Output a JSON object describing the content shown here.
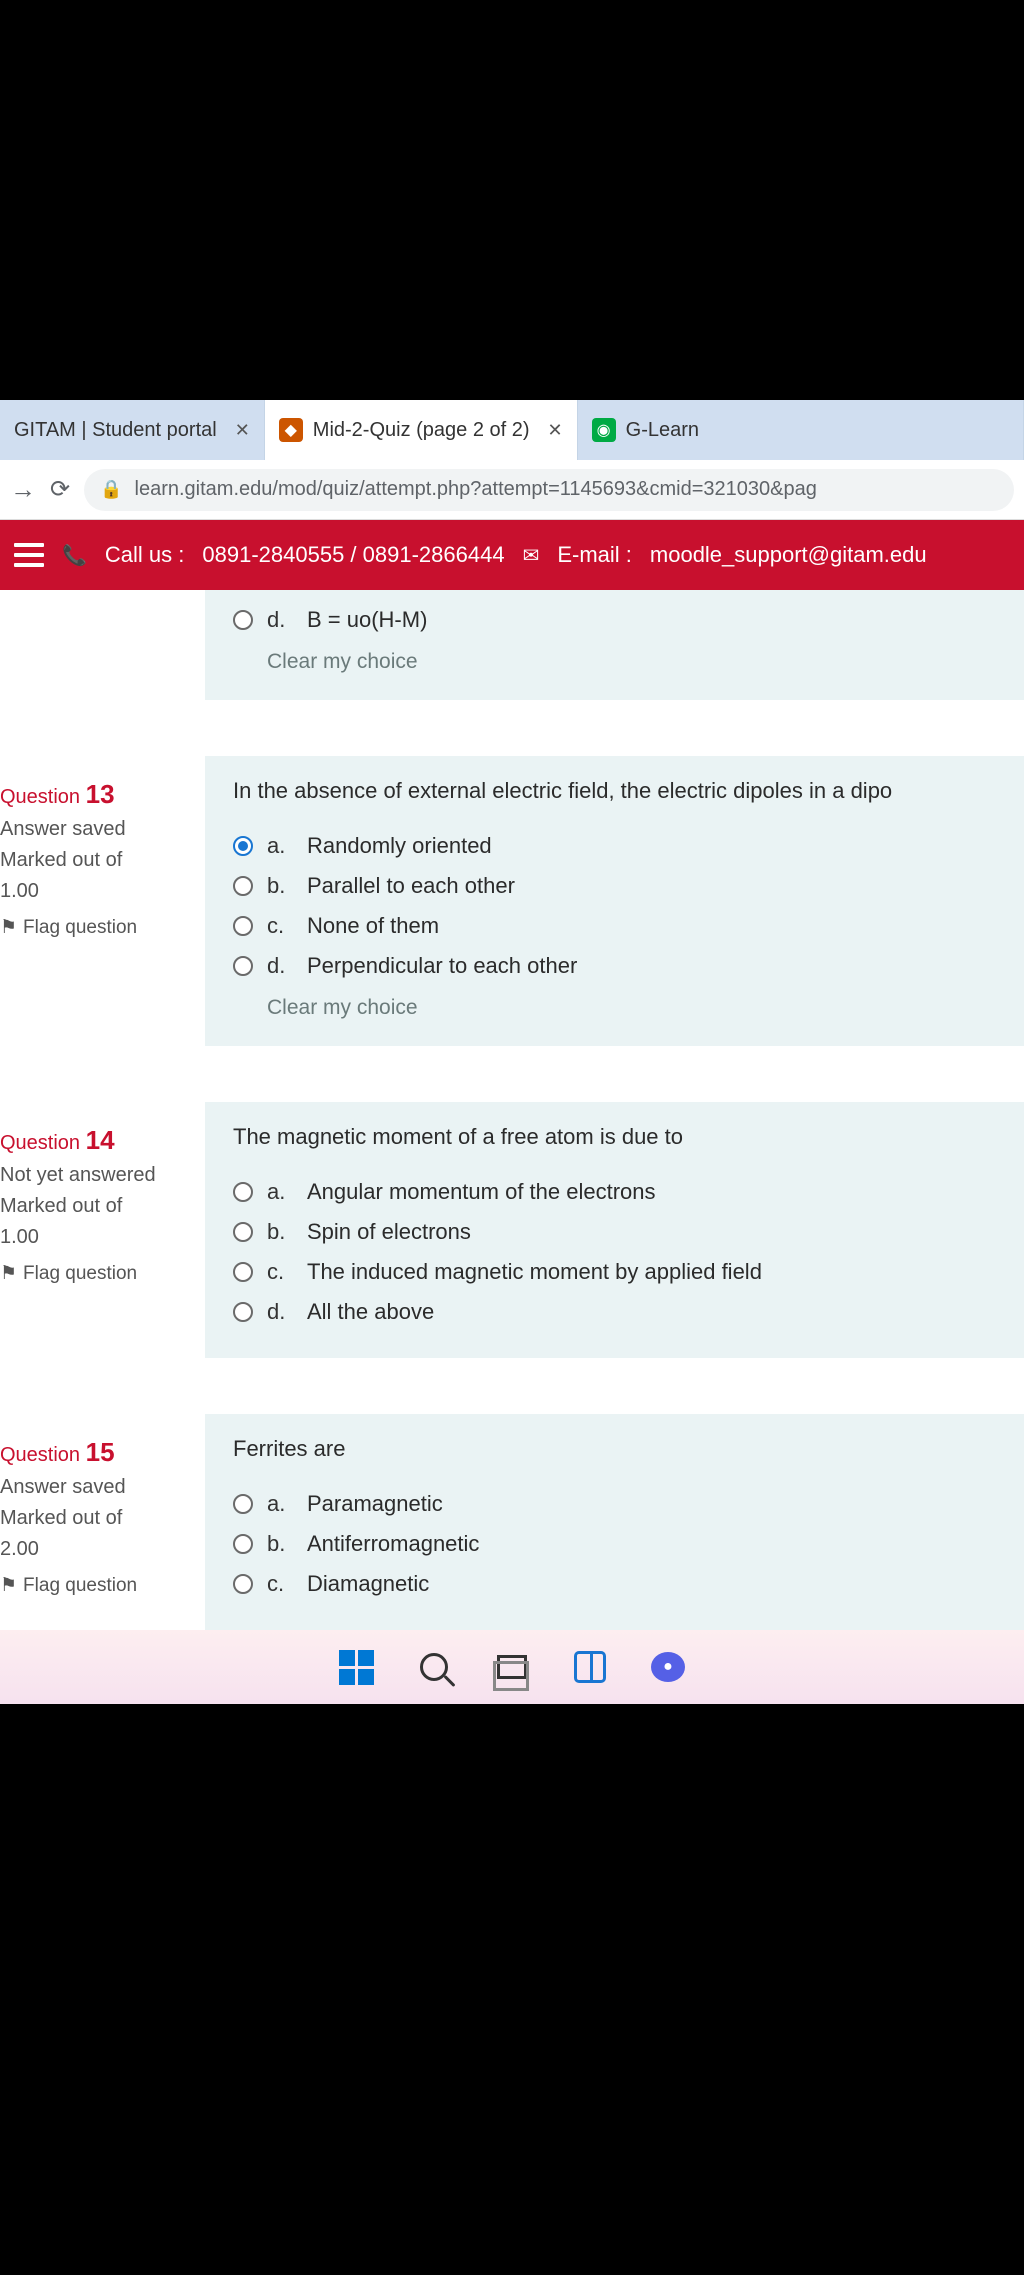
{
  "tabs": {
    "t0": {
      "title": "GITAM | Student portal"
    },
    "t1": {
      "title": "Mid-2-Quiz (page 2 of 2)"
    },
    "t2": {
      "title": "G-Learn"
    }
  },
  "url": "learn.gitam.edu/mod/quiz/attempt.php?attempt=1145693&cmid=321030&pag",
  "header": {
    "call_label": "Call us : ",
    "phones": "0891-2840555 / 0891-2866444",
    "email_label": "E-mail : ",
    "email": "moodle_support@gitam.edu"
  },
  "q12_tail": {
    "opt_d_letter": "d.",
    "opt_d_text": "B = uo(H-M)",
    "clear": "Clear my choice"
  },
  "q13": {
    "label": "Question ",
    "num": "13",
    "status": "Answer saved",
    "marked": "Marked out of",
    "marks": "1.00",
    "flag": "Flag question",
    "text": "In the absence of external electric field, the electric dipoles in a dipo",
    "opts": {
      "a_l": "a.",
      "a": "Randomly oriented",
      "b_l": "b.",
      "b": "Parallel to each other",
      "c_l": "c.",
      "c": "None of them",
      "d_l": "d.",
      "d": "Perpendicular to each other"
    },
    "clear": "Clear my choice"
  },
  "q14": {
    "label": "Question ",
    "num": "14",
    "status": "Not yet answered",
    "marked": "Marked out of",
    "marks": "1.00",
    "flag": "Flag question",
    "text": "The magnetic moment of a free atom is due to",
    "opts": {
      "a_l": "a.",
      "a": "Angular momentum of the electrons",
      "b_l": "b.",
      "b": "Spin of electrons",
      "c_l": "c.",
      "c": "The induced magnetic moment by applied field",
      "d_l": "d.",
      "d": "All the above"
    }
  },
  "q15": {
    "label": "Question ",
    "num": "15",
    "status": "Answer saved",
    "marked": "Marked out of",
    "marks": "2.00",
    "flag": "Flag question",
    "text": "Ferrites are",
    "opts": {
      "a_l": "a.",
      "a": "Paramagnetic",
      "b_l": "b.",
      "b": "Antiferromagnetic",
      "c_l": "c.",
      "c": "Diamagnetic"
    }
  },
  "colors": {
    "brand_red": "#c8102e",
    "question_bg": "#eaf3f4",
    "tabstrip_bg": "#deeaf6",
    "radio_checked": "#1976d2"
  }
}
